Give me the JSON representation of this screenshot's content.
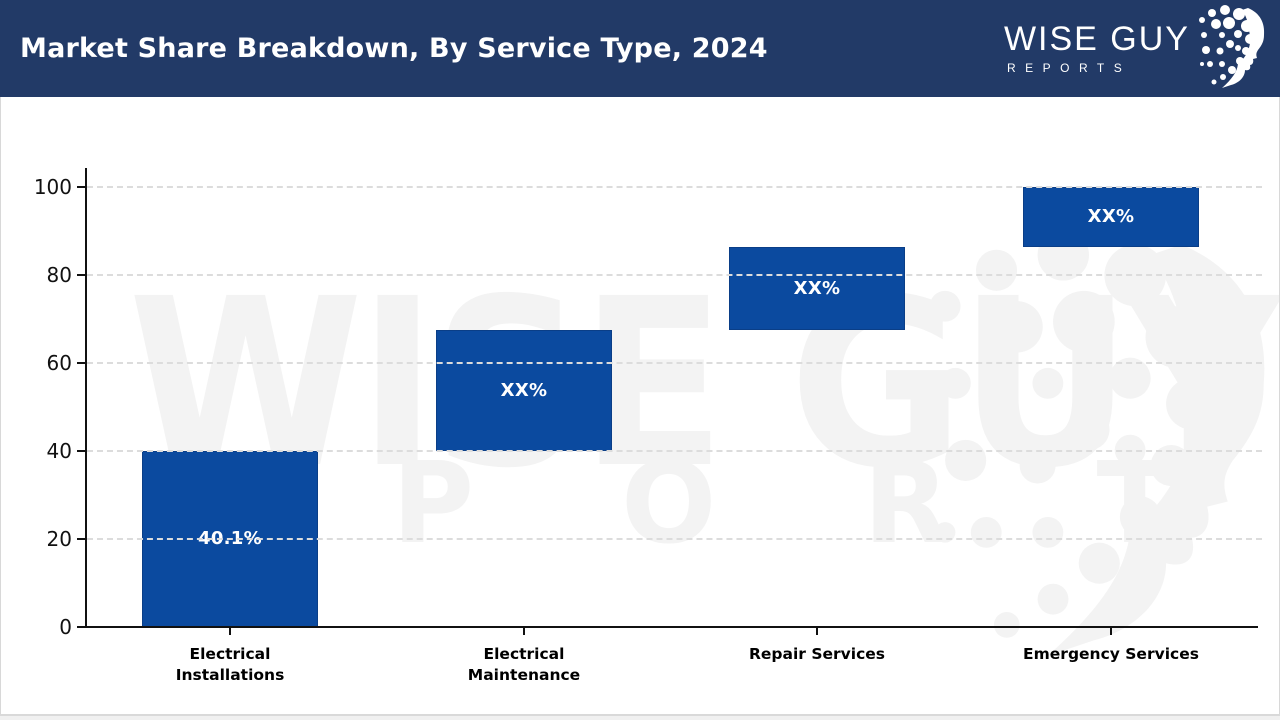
{
  "header": {
    "title": "Market Share Breakdown, By Service Type, 2024",
    "logo": {
      "line1": "WISE GUY",
      "line2": "REPORTS"
    }
  },
  "watermark": {
    "line1": "WISE GUY",
    "line2": "P O R T S"
  },
  "colors": {
    "header_bg": "#223a67",
    "bar_fill": "#0b4a9f",
    "bar_edge": "#0a3e87",
    "grid": "#dcdcdc",
    "axis": "#111111",
    "bar_label": "#ffffff",
    "watermark": "#f3f3f3"
  },
  "chart_data": {
    "type": "bar",
    "subtype": "waterfall",
    "title": "Market Share Breakdown, By Service Type, 2024",
    "categories": [
      "Electrical\nInstallations",
      "Electrical\nMaintenance",
      "Repair Services",
      "Emergency Services"
    ],
    "segments": [
      {
        "category": "Electrical Installations",
        "start": 0,
        "end": 40.1,
        "label": "40.1%"
      },
      {
        "category": "Electrical Maintenance",
        "start": 40.1,
        "end": 67.5,
        "label": "XX%"
      },
      {
        "category": "Repair Services",
        "start": 67.5,
        "end": 86.4,
        "label": "XX%"
      },
      {
        "category": "Emergency Services",
        "start": 86.4,
        "end": 100,
        "label": "XX%"
      }
    ],
    "yticks": [
      0,
      20,
      40,
      60,
      80,
      100
    ],
    "ylim": [
      0,
      100
    ],
    "xlabel": "",
    "ylabel": "",
    "grid": "horizontal-dashed",
    "legend": "none"
  }
}
